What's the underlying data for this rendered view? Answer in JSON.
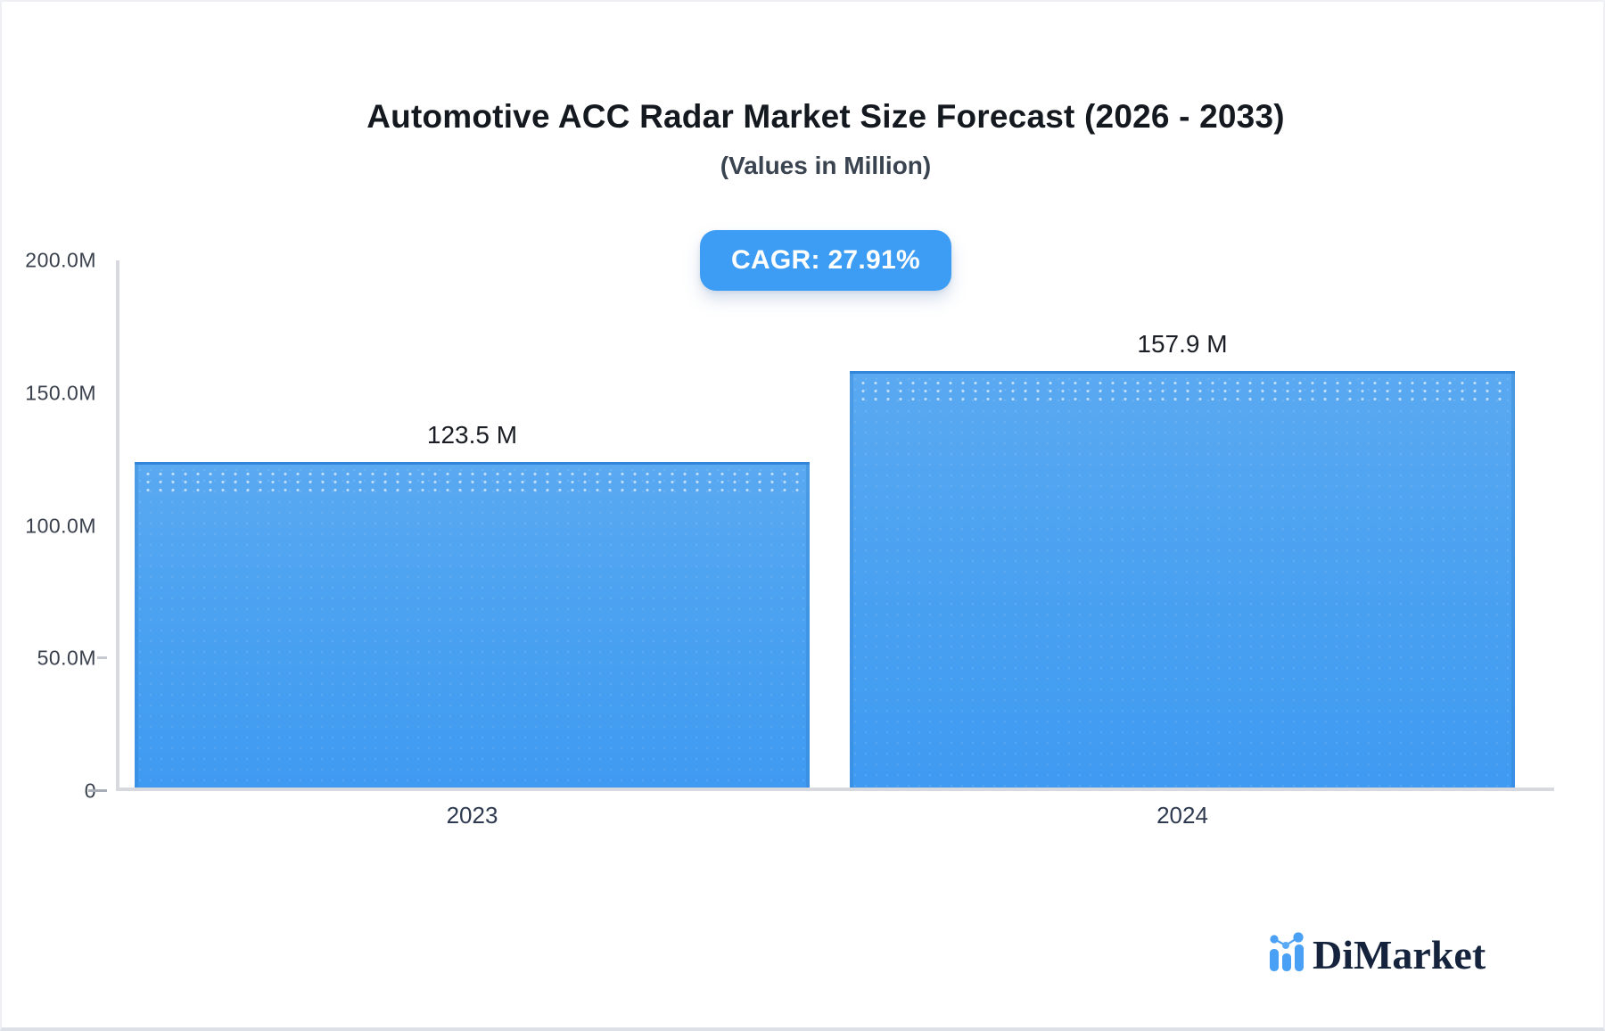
{
  "chart": {
    "title": "Automotive ACC Radar Market Size Forecast (2026 - 2033)",
    "subtitle": "(Values in Million)",
    "cagr_label": "CAGR: 27.91%"
  },
  "chart_data": {
    "type": "bar",
    "title": "Automotive ACC Radar Market Size Forecast (2026 - 2033)",
    "subtitle": "(Values in Million)",
    "cagr_percent": 27.91,
    "categories": [
      "2023",
      "2024"
    ],
    "values": [
      123.5,
      157.9
    ],
    "value_labels": [
      "123.5 M",
      "157.9 M"
    ],
    "unit": "Million",
    "xlabel": "",
    "ylabel": "",
    "ylim": [
      0,
      200
    ],
    "yticks": [
      {
        "value": 0,
        "label": "0"
      },
      {
        "value": 50,
        "label": "50.0M"
      },
      {
        "value": 100,
        "label": "100.0M"
      },
      {
        "value": 150,
        "label": "150.0M"
      },
      {
        "value": 200,
        "label": "200.0M"
      }
    ],
    "grid": false,
    "legend": false,
    "bar_color_top": "#5aa9f1",
    "bar_color_bottom": "#3f9af1",
    "accent_color": "#3d9cf4"
  },
  "branding": {
    "logo_text": "DiMarket"
  }
}
